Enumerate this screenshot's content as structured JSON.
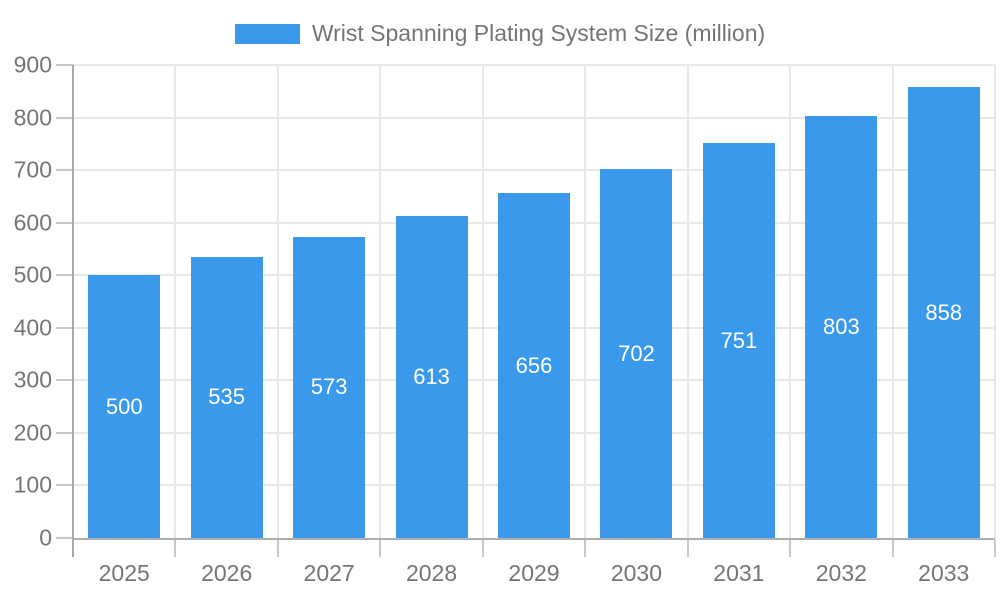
{
  "chart_data": {
    "type": "bar",
    "title": "Wrist Spanning Plating System Size (million)",
    "categories": [
      "2025",
      "2026",
      "2027",
      "2028",
      "2029",
      "2030",
      "2031",
      "2032",
      "2033"
    ],
    "values": [
      500,
      535,
      573,
      613,
      656,
      702,
      751,
      803,
      858
    ],
    "value_labels": [
      "500",
      "535",
      "573",
      "613",
      "656",
      "702",
      "751",
      "803",
      "858"
    ],
    "value_label_position": "inside-middle",
    "xlabel": "",
    "ylabel": "",
    "ylim": [
      0,
      900
    ],
    "ytick_step": 100,
    "ytick_labels": [
      "0",
      "100",
      "200",
      "300",
      "400",
      "500",
      "600",
      "700",
      "800",
      "900"
    ],
    "grid": true,
    "legend_position": "top-center",
    "colors": {
      "bar": "#3B99EC",
      "value_label_text": "#ffffff",
      "axis_text": "#757575",
      "gridline": "#e8e8e8",
      "axis_line": "#a8a8a8",
      "tick": "#c9c9c9",
      "background": "#ffffff"
    }
  }
}
